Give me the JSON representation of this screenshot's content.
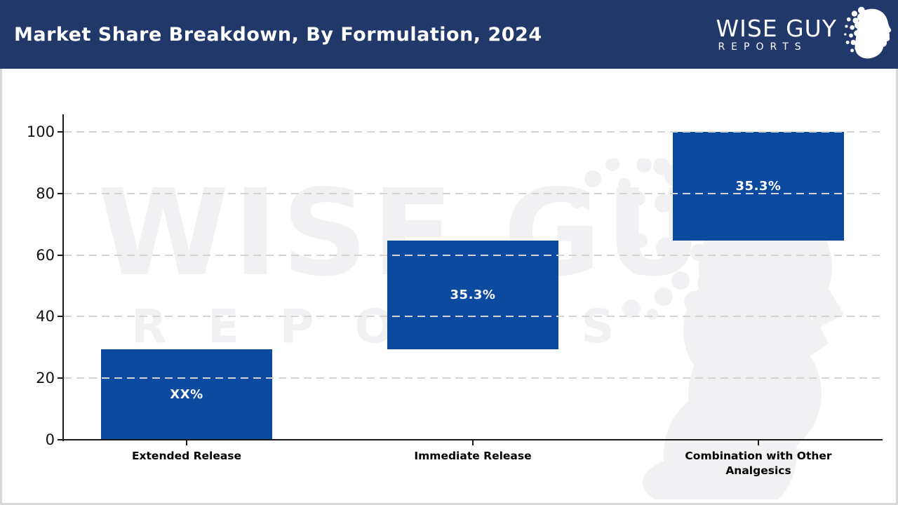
{
  "header": {
    "title": "Market Share Breakdown, By Formulation, 2024",
    "bg_color": "#21386a",
    "logo": {
      "line1": "WISE GUY",
      "line2": "REPORTS",
      "icon": "dotted-face-icon"
    }
  },
  "watermark": {
    "line1": "WISE GUY",
    "line2": "REPORTS",
    "color": "#f1f1f4"
  },
  "chart_data": {
    "type": "bar",
    "subtype": "waterfall",
    "title": "Market Share Breakdown, By Formulation, 2024",
    "xlabel": "",
    "ylabel": "",
    "categories": [
      "Extended Release",
      "Immediate Release",
      "Combination with Other Analgesics"
    ],
    "bars": [
      {
        "category": "Extended Release",
        "start": 0,
        "end": 29.4,
        "label": "XX%"
      },
      {
        "category": "Immediate Release",
        "start": 29.4,
        "end": 64.7,
        "label": "35.3%"
      },
      {
        "category": "Combination with Other Analgesics",
        "start": 64.7,
        "end": 100,
        "label": "35.3%"
      }
    ],
    "ylim": [
      0,
      106
    ],
    "yticks": [
      0,
      20,
      40,
      60,
      80,
      100
    ],
    "grid": "horizontal dashed, drawn above bars",
    "legend_position": "none",
    "colors": {
      "bar": "#0b4a9e",
      "bar_label_text": "#ffffff",
      "gridline": "#d4d4d4",
      "axis": "#1a1a1a",
      "tick_label": "#111111"
    }
  }
}
